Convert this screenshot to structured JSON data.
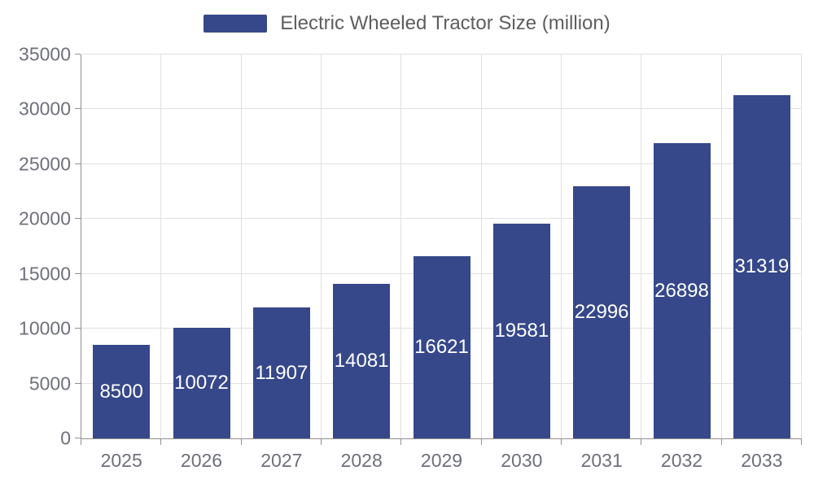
{
  "legend": {
    "label": "Electric Wheeled Tractor Size (million)"
  },
  "chart_data": {
    "type": "bar",
    "title": "Electric Wheeled Tractor Size (million)",
    "categories": [
      "2025",
      "2026",
      "2027",
      "2028",
      "2029",
      "2030",
      "2031",
      "2032",
      "2033"
    ],
    "values": [
      8500,
      10072,
      11907,
      14081,
      16621,
      19581,
      22996,
      26898,
      31319
    ],
    "series_name": "Electric Wheeled Tractor Size (million)",
    "xlabel": "",
    "ylabel": "",
    "ylim": [
      0,
      35000
    ],
    "y_ticks": [
      0,
      5000,
      10000,
      15000,
      20000,
      25000,
      30000,
      35000
    ],
    "grid": true,
    "legend_position": "top-center",
    "value_labels": "inside-center-white",
    "colors": {
      "bar": "#36488A",
      "grid_line": "#E0E0E0",
      "axis_line": "#8F8F8F",
      "tick": "#8F8F8F",
      "axis_label": "#6E7079",
      "legend_text": "#5E5E5E",
      "value_label": "#FFFFFF",
      "background": "#FFFFFF"
    }
  }
}
